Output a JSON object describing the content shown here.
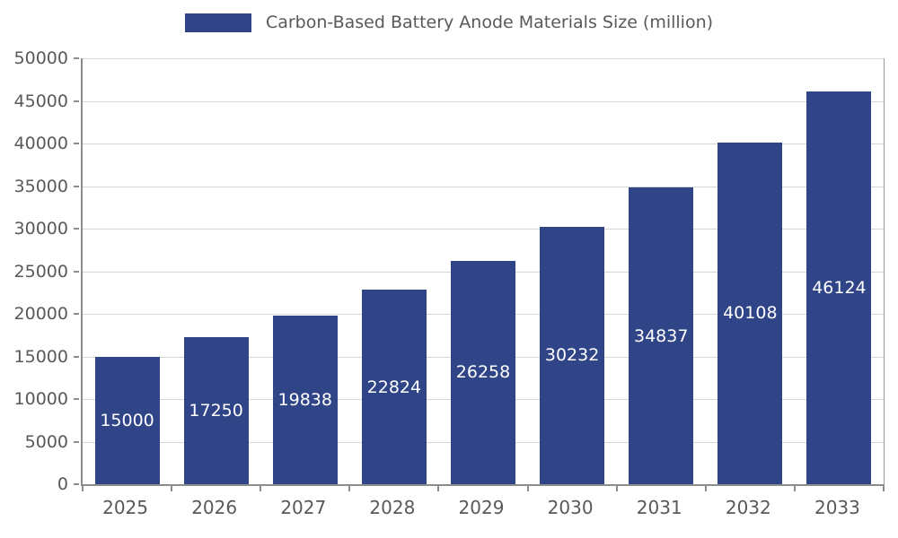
{
  "chart_data": {
    "type": "bar",
    "title": "Carbon-Based Battery Anode Materials Size (million)",
    "categories": [
      "2025",
      "2026",
      "2027",
      "2028",
      "2029",
      "2030",
      "2031",
      "2032",
      "2033"
    ],
    "values": [
      15000,
      17250,
      19838,
      22824,
      26258,
      30232,
      34837,
      40108,
      46124
    ],
    "xlabel": "",
    "ylabel": "",
    "ylim": [
      0,
      50000
    ],
    "yticks": [
      0,
      5000,
      10000,
      15000,
      20000,
      25000,
      30000,
      35000,
      40000,
      45000,
      50000
    ],
    "grid": true,
    "legend_position": "top",
    "bar_color": "#304488",
    "value_label_color": "#ffffff",
    "axis_text_color": "#595959",
    "gridline_color": "#d6d6d6",
    "axis_line_color": "#8c8c8c",
    "background_color": "#ffffff"
  }
}
